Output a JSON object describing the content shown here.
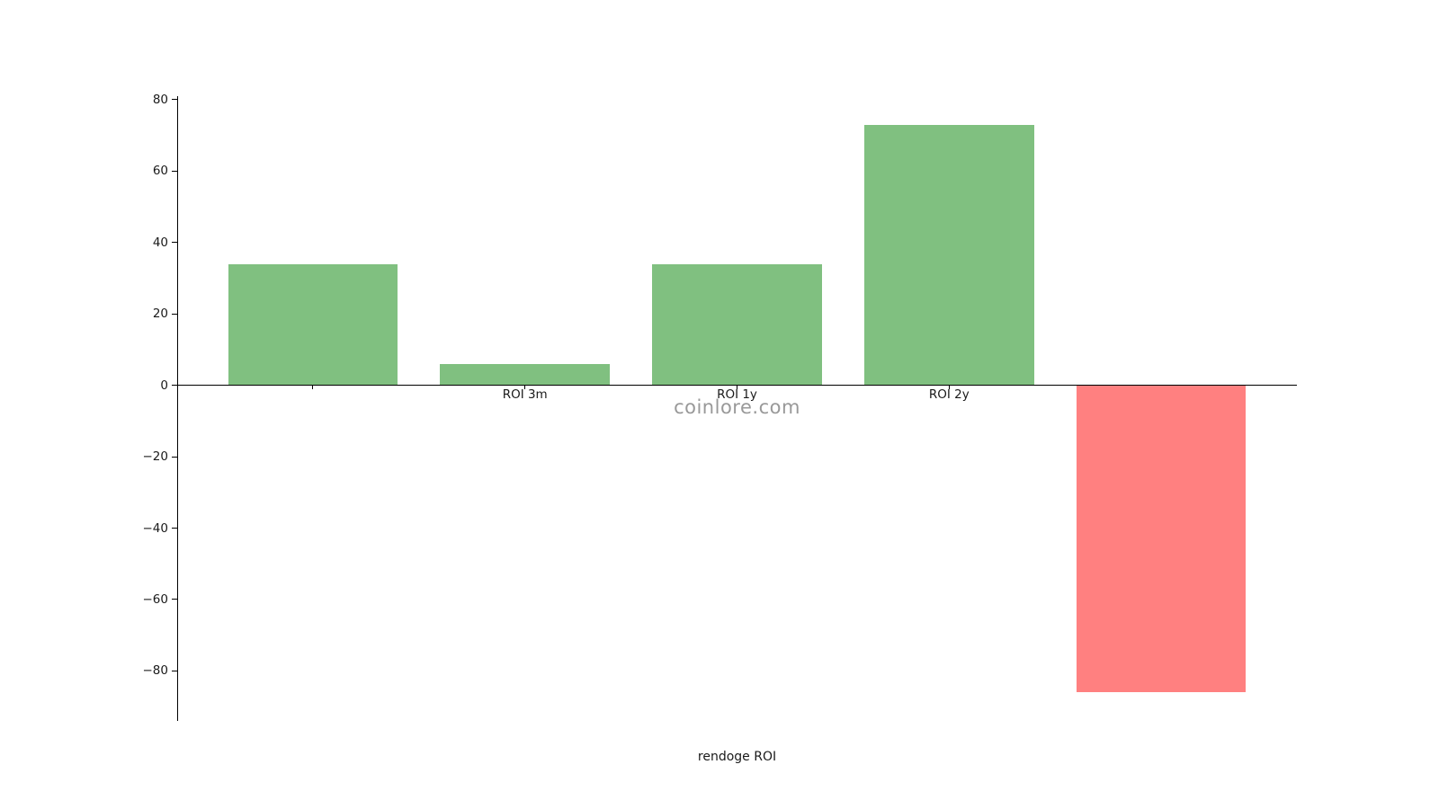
{
  "page": {
    "background_color": "#ffffff"
  },
  "chart_data": {
    "type": "bar",
    "title": "",
    "xlabel": "rendoge ROI",
    "ylabel": "",
    "watermark": "coinlore.com",
    "categories": [
      "",
      "ROI 3m",
      "ROI 1y",
      "ROI 2y",
      ""
    ],
    "values": [
      34,
      6,
      34,
      73,
      -86
    ],
    "bar_colors": [
      "#80c080",
      "#80c080",
      "#80c080",
      "#80c080",
      "#ff8080"
    ],
    "positive_color": "#80c080",
    "negative_color": "#ff8080",
    "yticks": {
      "values": [
        80,
        60,
        40,
        20,
        0,
        -20,
        -40,
        -60,
        -80
      ],
      "labels": [
        "80",
        "60",
        "40",
        "20",
        "0",
        "−20",
        "−40",
        "−60",
        "−80"
      ]
    },
    "ylim": [
      -94,
      81
    ],
    "grid": false,
    "legend": null,
    "axis_color": "#000000",
    "tick_label_color": "#1a1a1a",
    "watermark_color": "#999999"
  }
}
